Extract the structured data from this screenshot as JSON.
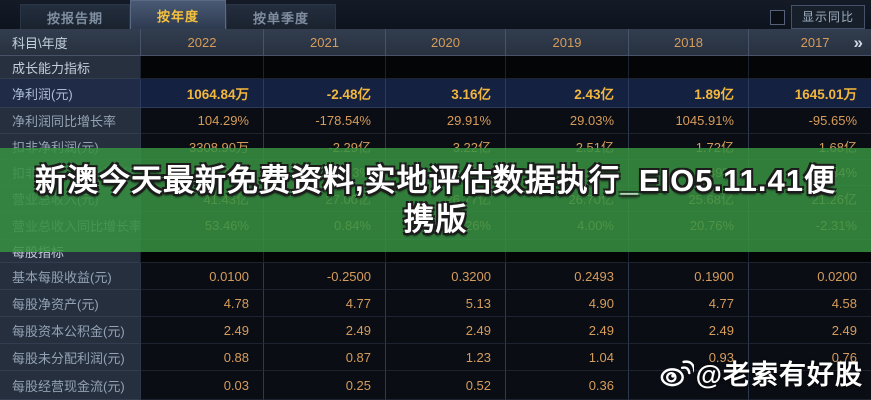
{
  "tabs": {
    "items": [
      {
        "label": "按报告期",
        "active": false
      },
      {
        "label": "按年度",
        "active": true
      },
      {
        "label": "按单季度",
        "active": false
      }
    ]
  },
  "controls": {
    "show_yoy_label": "显示同比",
    "yoy_checkbox_checked": false
  },
  "table": {
    "corner_header": "科目\\年度",
    "years": [
      "2022",
      "2021",
      "2020",
      "2019",
      "2018",
      "2017"
    ],
    "more_icon": "»",
    "rows": [
      {
        "type": "section",
        "label": "成长能力指标",
        "values": [
          "",
          "",
          "",
          "",
          "",
          ""
        ]
      },
      {
        "type": "data",
        "highlight": true,
        "label": "净利润(元)",
        "values": [
          "1064.84万",
          "-2.48亿",
          "3.16亿",
          "2.43亿",
          "1.89亿",
          "1645.01万"
        ]
      },
      {
        "type": "data",
        "label": "净利润同比增长率",
        "values": [
          "104.29%",
          "-178.54%",
          "29.91%",
          "29.03%",
          "1045.91%",
          "-95.65%"
        ]
      },
      {
        "type": "data",
        "label": "扣非净利润(元)",
        "values": [
          "3308.90万",
          "-2.29亿",
          "3.22亿",
          "2.51亿",
          "1.72亿",
          "1.68亿"
        ]
      },
      {
        "type": "data",
        "label": "扣非净利润同比增长率",
        "values": [
          "114.45%",
          "-171.03%",
          "28.12%",
          "45.93%",
          "2.49%",
          "-56.34%"
        ]
      },
      {
        "type": "data",
        "label": "营业总收入(元)",
        "values": [
          "41.43亿",
          "27.00亿",
          "26.77亿",
          "26.70亿",
          "25.68亿",
          "21.26亿"
        ]
      },
      {
        "type": "data",
        "label": "营业总收入同比增长率",
        "values": [
          "53.46%",
          "0.84%",
          "0.26%",
          "4.00%",
          "20.76%",
          "-2.31%"
        ]
      },
      {
        "type": "section",
        "label": "每股指标",
        "values": [
          "",
          "",
          "",
          "",
          "",
          ""
        ]
      },
      {
        "type": "data",
        "label": "基本每股收益(元)",
        "values": [
          "0.0100",
          "-0.2500",
          "0.3200",
          "0.2493",
          "0.1900",
          "0.0200"
        ]
      },
      {
        "type": "data",
        "label": "每股净资产(元)",
        "values": [
          "4.78",
          "4.77",
          "5.13",
          "4.90",
          "4.77",
          "4.58"
        ]
      },
      {
        "type": "data",
        "label": "每股资本公积金(元)",
        "values": [
          "2.49",
          "2.49",
          "2.49",
          "2.49",
          "2.49",
          "2.49"
        ]
      },
      {
        "type": "data",
        "label": "每股未分配利润(元)",
        "values": [
          "0.88",
          "0.87",
          "1.23",
          "1.04",
          "0.93",
          "0.76"
        ]
      },
      {
        "type": "data",
        "label": "每股经营现金流(元)",
        "values": [
          "0.03",
          "0.25",
          "0.52",
          "0.36",
          "",
          ""
        ]
      }
    ]
  },
  "overlay": {
    "line1": "新澳今天最新免费资料,实地评估数据执行_EIO5.11.41便",
    "line2": "携版"
  },
  "watermark": {
    "icon": "weibo-logo",
    "handle": "@老索有好股"
  },
  "colors": {
    "accent_gold": "#f5c13d",
    "value_orange": "#d69c5c",
    "highlight_row_bg": "#152140",
    "promo_green": "#389242",
    "header_bg": "#2b3545"
  }
}
